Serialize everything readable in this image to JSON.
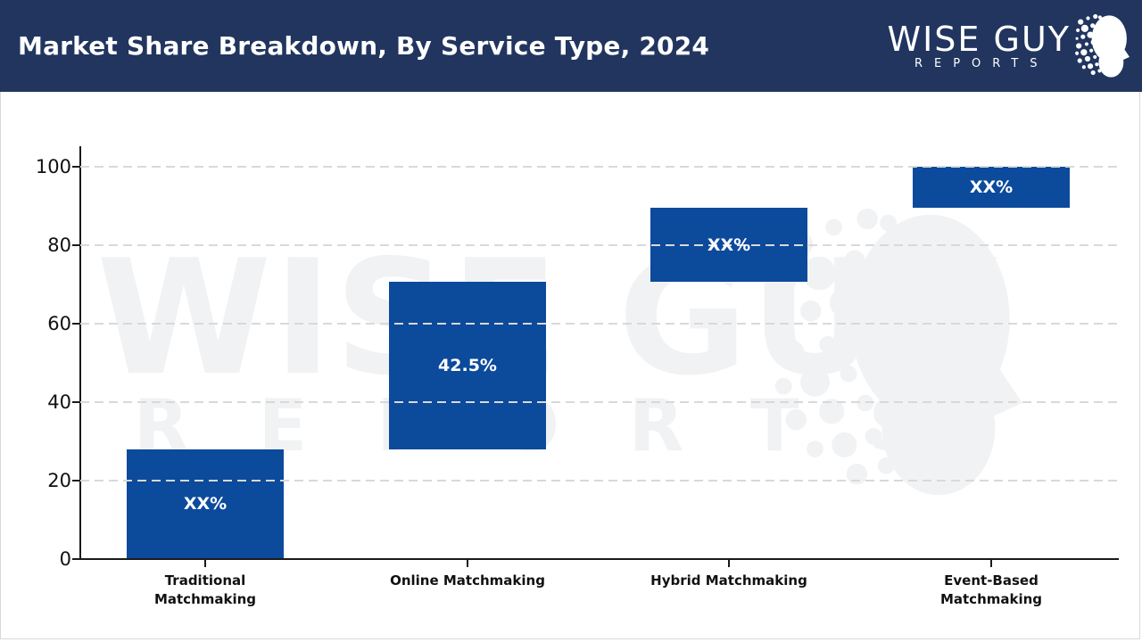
{
  "header": {
    "title": "Market Share Breakdown, By Service Type, 2024",
    "logo": {
      "brand": "WISE GUY",
      "sub": "REPORTS"
    }
  },
  "watermark": {
    "brand": "WISE GUY",
    "sub": "REPORTS"
  },
  "chart_data": {
    "type": "bar",
    "variant": "stacked-waterfall",
    "title": "Market Share Breakdown, By Service Type, 2024",
    "unit": "%",
    "categories": [
      "Traditional Matchmaking",
      "Online Matchmaking",
      "Hybrid Matchmaking",
      "Event-Based Matchmaking"
    ],
    "category_label_lines": [
      [
        "Traditional",
        "Matchmaking"
      ],
      [
        "Online Matchmaking"
      ],
      [
        "Hybrid Matchmaking"
      ],
      [
        "Event-Based",
        "Matchmaking"
      ]
    ],
    "segments": [
      {
        "category": "Traditional Matchmaking",
        "start": 0,
        "end": 28,
        "value_label": "XX%"
      },
      {
        "category": "Online Matchmaking",
        "start": 28,
        "end": 70.5,
        "value_label": "42.5%"
      },
      {
        "category": "Hybrid Matchmaking",
        "start": 70.5,
        "end": 89.5,
        "value_label": "XX%"
      },
      {
        "category": "Event-Based Matchmaking",
        "start": 89.5,
        "end": 100,
        "value_label": "XX%"
      }
    ],
    "ylim": [
      0,
      100
    ],
    "yticks": [
      0,
      20,
      40,
      60,
      80,
      100
    ],
    "grid": {
      "horizontal": true,
      "style": "dashed"
    },
    "legend": "none",
    "colors": {
      "bar": "#0c4a9c",
      "header_navy": "#21355f",
      "grid": "#d9d9d9",
      "axis": "#1a1a1a",
      "bar_label_text": "#ffffff",
      "watermark": "#f1f2f4"
    }
  }
}
